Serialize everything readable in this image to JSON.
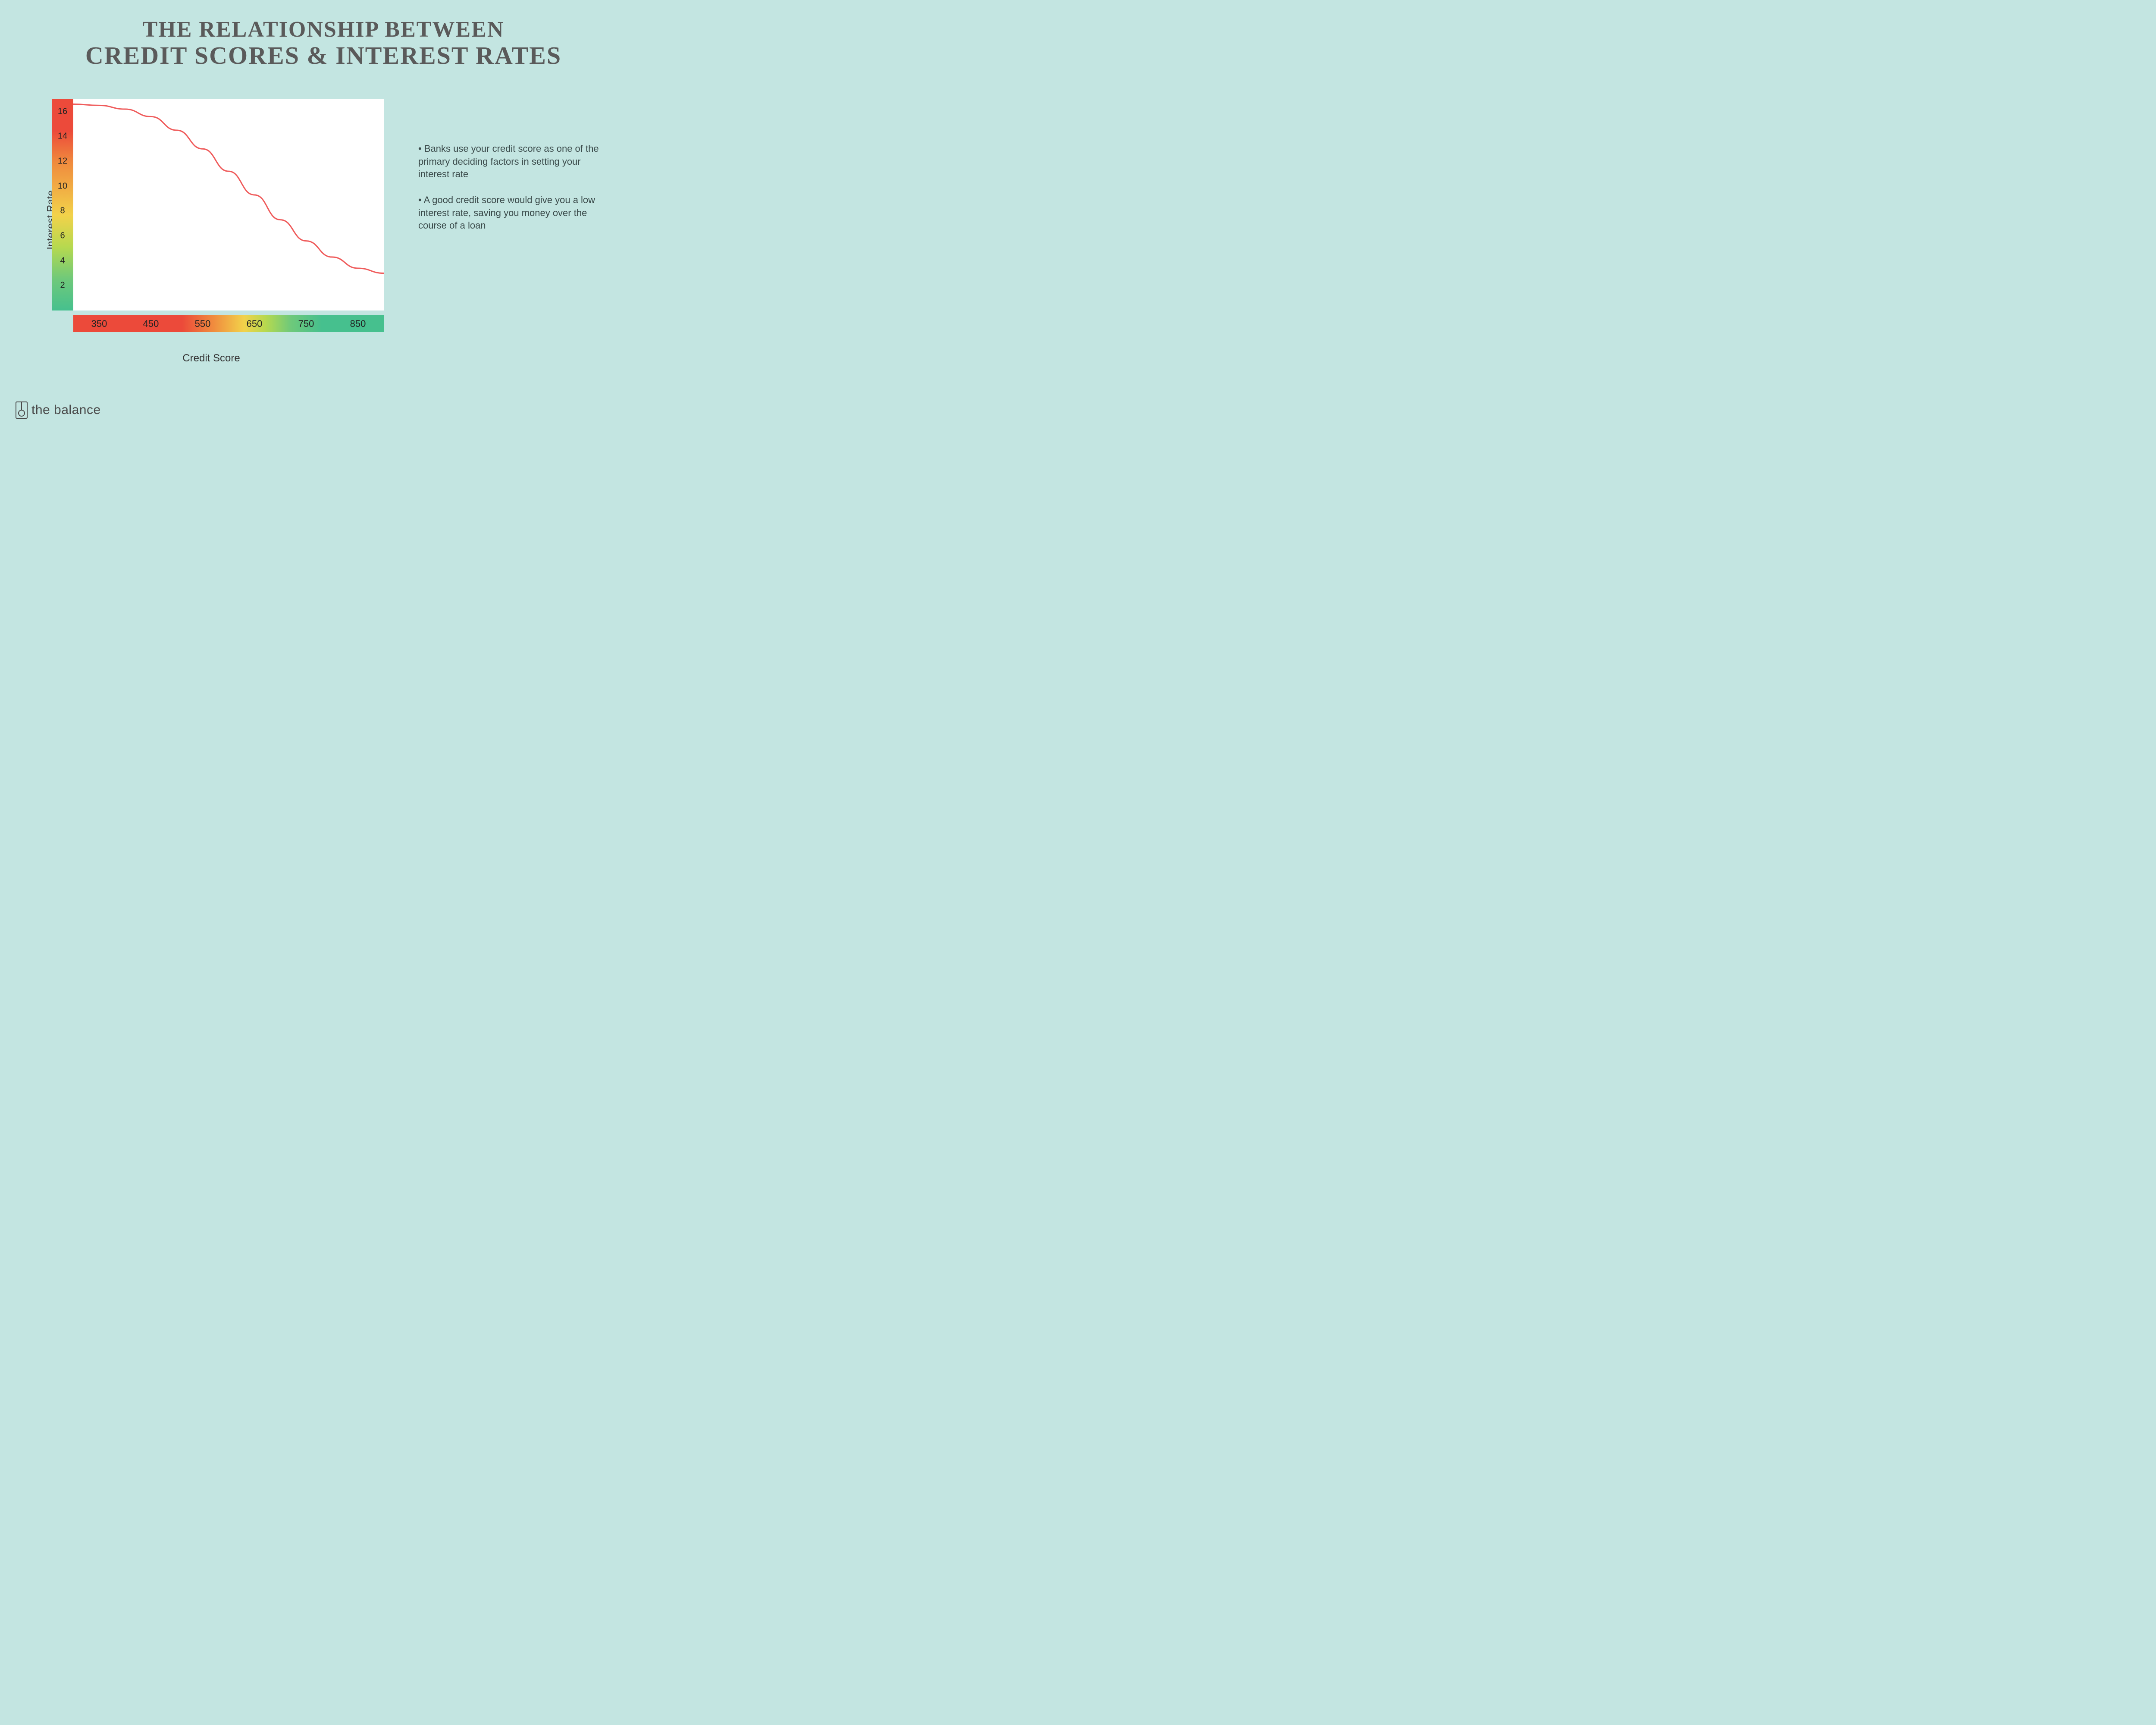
{
  "title": {
    "line1": "The Relationship Between",
    "line2": "Credit Scores & Interest Rates",
    "color": "#5a5a5a",
    "fontsize_line1": 52,
    "fontsize_line2": 58
  },
  "chart": {
    "type": "line",
    "background_color": "#ffffff",
    "page_background": "#c3e5e1",
    "xlabel": "Credit Score",
    "ylabel": "Interest Rate",
    "label_fontsize": 24,
    "xlim": [
      300,
      900
    ],
    "ylim": [
      0,
      17
    ],
    "xticks": [
      350,
      450,
      550,
      650,
      750,
      850
    ],
    "yticks": [
      2,
      4,
      6,
      8,
      10,
      12,
      14,
      16
    ],
    "tick_fontsize": 20,
    "line_color": "#ef5b5b",
    "line_width": 3,
    "data": {
      "x": [
        300,
        350,
        400,
        450,
        500,
        550,
        600,
        650,
        700,
        750,
        800,
        850,
        900
      ],
      "y": [
        16.6,
        16.5,
        16.2,
        15.6,
        14.5,
        13.0,
        11.2,
        9.3,
        7.3,
        5.6,
        4.3,
        3.4,
        3.0
      ]
    },
    "y_axis_gradient_colors": [
      "#ec4a3a",
      "#f08b3e",
      "#f2d24a",
      "#b6d94f",
      "#6fc97a",
      "#46c08e"
    ],
    "x_axis_gradient_colors": [
      "#ec4a3a",
      "#f08b3e",
      "#f2d24a",
      "#b6d94f",
      "#6fc97a",
      "#46c08e"
    ]
  },
  "bullets": [
    "Banks use your credit score as one of the primary deciding factors in setting your interest rate",
    "A good credit score would give you a low interest rate, saving you money over the course of a loan"
  ],
  "bullet_fontsize": 22,
  "bullet_color": "#3a4a4a",
  "logo_text": "the balance"
}
